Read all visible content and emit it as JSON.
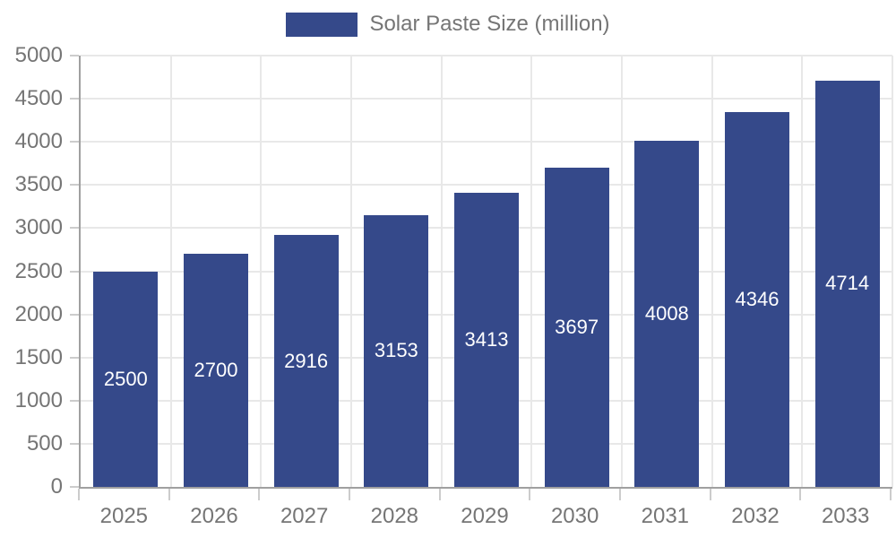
{
  "legend": {
    "label": "Solar Paste Size (million)",
    "swatch_color": "#35498A"
  },
  "colors": {
    "bar": "#35498A",
    "axis_line": "#a0a0a0",
    "gridline": "#e8e8e8",
    "tick_mark": "#cccccc",
    "tick_text": "#757575",
    "bar_label_text": "#ffffff",
    "background": "#ffffff"
  },
  "chart_data": {
    "type": "bar",
    "title": "",
    "xlabel": "",
    "ylabel": "",
    "categories": [
      "2025",
      "2026",
      "2027",
      "2028",
      "2029",
      "2030",
      "2031",
      "2032",
      "2033"
    ],
    "series": [
      {
        "name": "Solar Paste Size (million)",
        "values": [
          2500,
          2700,
          2916,
          3153,
          3413,
          3697,
          4008,
          4346,
          4714
        ]
      }
    ],
    "data_labels": [
      "2500",
      "2700",
      "2916",
      "3153",
      "3413",
      "3697",
      "4008",
      "4346",
      "4714"
    ],
    "ylim": [
      0,
      5000
    ],
    "yticks": [
      0,
      500,
      1000,
      1500,
      2000,
      2500,
      3000,
      3500,
      4000,
      4500,
      5000
    ],
    "grid": true,
    "legend_position": "top"
  }
}
